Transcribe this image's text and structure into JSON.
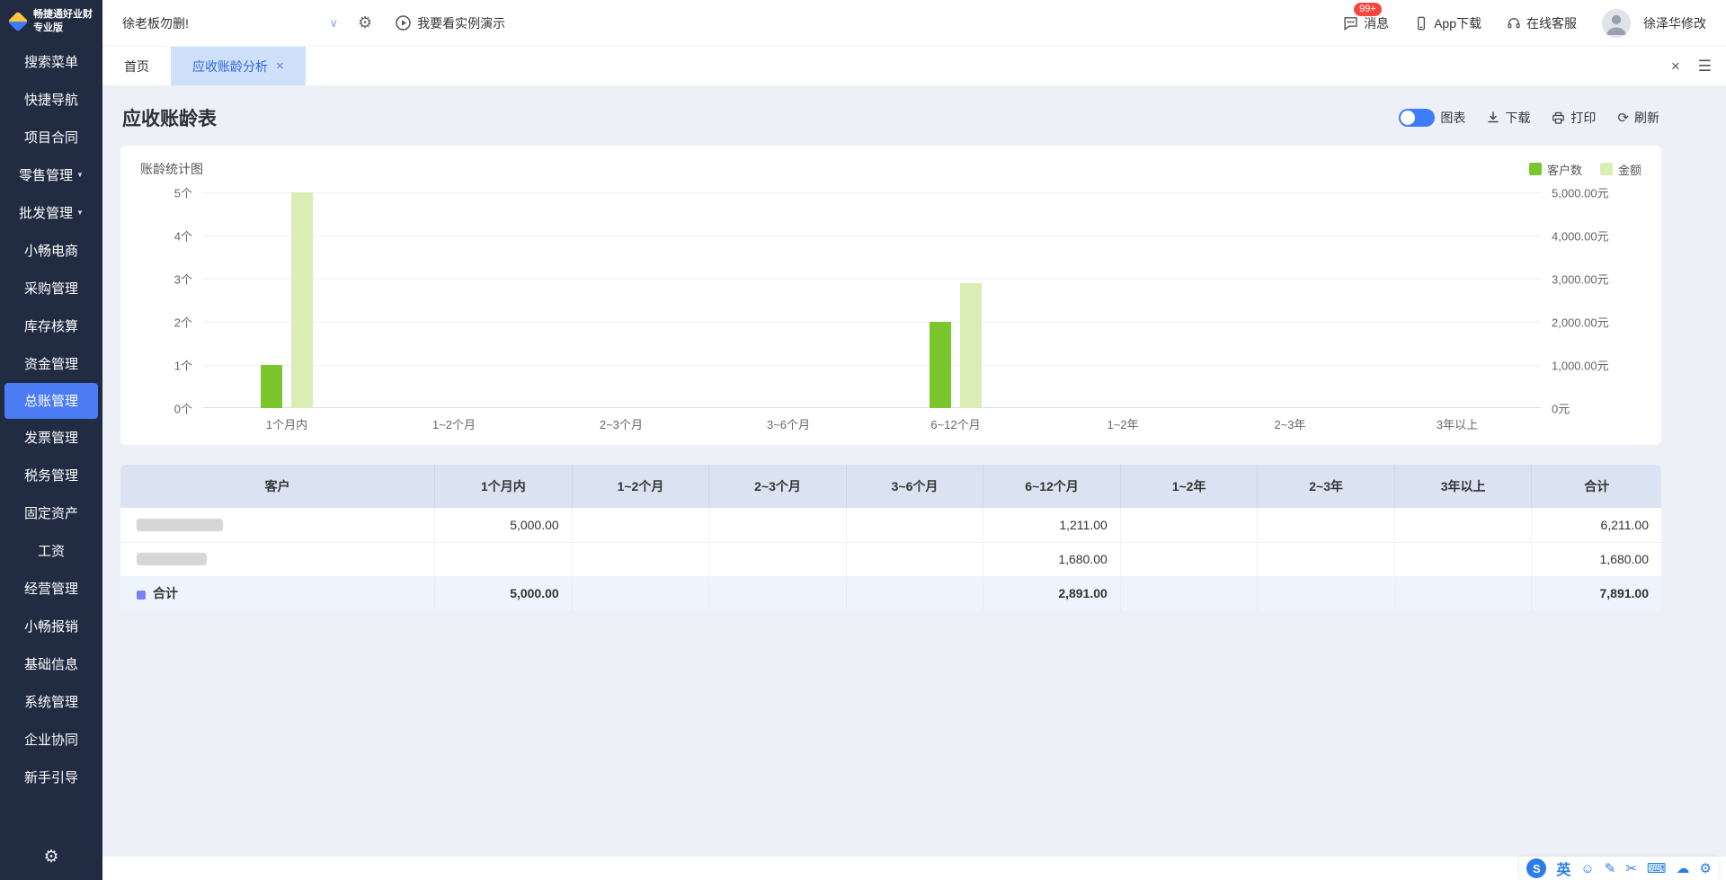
{
  "app": {
    "colors": {
      "accent": "#3f7bff",
      "sidebar_bg": "#212b42",
      "sidebar_active": "#4b7bf5",
      "tab_active_bg": "#cfe0fb",
      "green_dark": "#7cc62d",
      "green_light": "#d9edb5",
      "badge_red": "#f5483d",
      "table_header_bg": "#dbe3f3",
      "total_row_bg": "#edf4fe"
    }
  },
  "sidebar": {
    "logo_line1": "畅捷通好业财",
    "logo_line2": "专业版",
    "items": [
      {
        "label": "搜索菜单"
      },
      {
        "label": "快捷导航"
      },
      {
        "label": "项目合同"
      },
      {
        "label": "零售管理",
        "arrow": true
      },
      {
        "label": "批发管理",
        "arrow": true
      },
      {
        "label": "小畅电商"
      },
      {
        "label": "采购管理"
      },
      {
        "label": "库存核算"
      },
      {
        "label": "资金管理"
      },
      {
        "label": "总账管理",
        "active": true
      },
      {
        "label": "发票管理"
      },
      {
        "label": "税务管理"
      },
      {
        "label": "固定资产"
      },
      {
        "label": "工资"
      },
      {
        "label": "经营管理"
      },
      {
        "label": "小畅报销"
      },
      {
        "label": "基础信息"
      },
      {
        "label": "系统管理"
      },
      {
        "label": "企业协同"
      },
      {
        "label": "新手引导"
      }
    ]
  },
  "topbar": {
    "company_select": "徐老板勿删!",
    "demo_link": "我要看实例演示",
    "messages": {
      "label": "消息",
      "badge": "99+"
    },
    "app_download": "App下载",
    "online_support": "在线客服",
    "username": "徐泽华修改"
  },
  "tabs": {
    "items": [
      {
        "label": "首页"
      },
      {
        "label": "应收账龄分析",
        "active": true,
        "closable": true
      }
    ]
  },
  "page": {
    "title": "应收账龄表",
    "toolbar": {
      "chart_toggle": "图表",
      "download": "下载",
      "print": "打印",
      "refresh": "刷新"
    }
  },
  "chart_data": {
    "type": "bar",
    "title": "账龄统计图",
    "categories": [
      "1个月内",
      "1~2个月",
      "2~3个月",
      "3~6个月",
      "6~12个月",
      "1~2年",
      "2~3年",
      "3年以上"
    ],
    "series": [
      {
        "name": "客户数",
        "axis": "left",
        "color": "#7cc62d",
        "values": [
          1,
          0,
          0,
          0,
          2,
          0,
          0,
          0
        ]
      },
      {
        "name": "金额",
        "axis": "right",
        "color": "#d9edb5",
        "values": [
          5000,
          0,
          0,
          0,
          2891,
          0,
          0,
          0
        ]
      }
    ],
    "left_axis": {
      "ticks": [
        "0个",
        "1个",
        "2个",
        "3个",
        "4个",
        "5个"
      ],
      "min": 0,
      "max": 5
    },
    "right_axis": {
      "ticks": [
        "0元",
        "1,000.00元",
        "2,000.00元",
        "3,000.00元",
        "4,000.00元",
        "5,000.00元"
      ],
      "min": 0,
      "max": 5000
    },
    "grid": true,
    "legend_position": "top-right"
  },
  "table": {
    "headers": [
      "客户",
      "1个月内",
      "1~2个月",
      "2~3个月",
      "3~6个月",
      "6~12个月",
      "1~2年",
      "2~3年",
      "3年以上",
      "合计"
    ],
    "rows": [
      {
        "customer_redacted": true,
        "values": [
          "5,000.00",
          "",
          "",
          "",
          "1,211.00",
          "",
          "",
          "",
          "6,211.00"
        ]
      },
      {
        "customer_redacted": true,
        "values": [
          "",
          "",
          "",
          "",
          "1,680.00",
          "",
          "",
          "",
          "1,680.00"
        ]
      }
    ],
    "total": {
      "label": "合计",
      "values": [
        "5,000.00",
        "",
        "",
        "",
        "2,891.00",
        "",
        "",
        "",
        "7,891.00"
      ]
    }
  },
  "ime": {
    "logo_letter": "S",
    "lang": "英",
    "icons": [
      "emoji",
      "pen",
      "scissors",
      "keyboard",
      "cloud",
      "gear"
    ]
  },
  "icons": {
    "gear": "⚙",
    "refresh": "⟳",
    "chevron": "∨",
    "close": "×",
    "menu": "☰",
    "emoji": "☺",
    "pen": "✎",
    "scissors": "✂",
    "keyboard": "⌨",
    "cloud": "☁"
  }
}
